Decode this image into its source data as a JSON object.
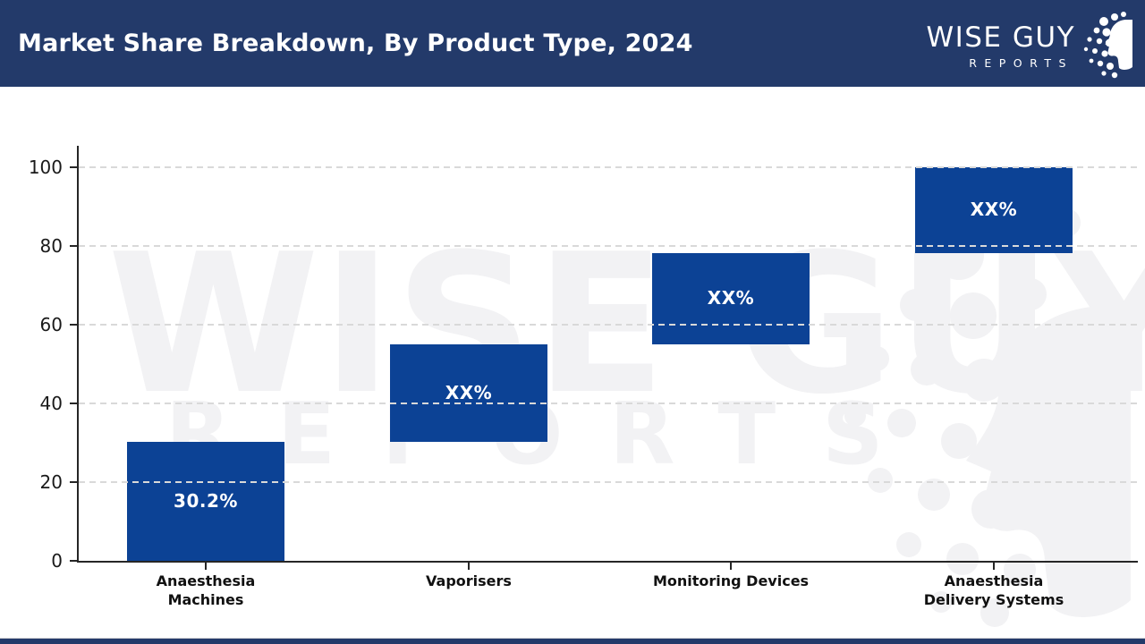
{
  "header": {
    "title": "Market Share Breakdown, By Product Type, 2024",
    "logo": {
      "line1": "WISE GUY",
      "line2": "REPORTS"
    }
  },
  "watermark": {
    "line1": "WISE GUY",
    "line2": "REPORTS"
  },
  "chart_data": {
    "type": "bar",
    "subtype": "waterfall",
    "title": "Market Share Breakdown, By Product Type, 2024",
    "categories": [
      "Anaesthesia Machines",
      "Vaporisers",
      "Monitoring Devices",
      "Anaesthesia Delivery Systems"
    ],
    "categories_display": [
      [
        "Anaesthesia",
        "Machines"
      ],
      [
        "Vaporisers"
      ],
      [
        "Monitoring Devices"
      ],
      [
        "Anaesthesia",
        "Delivery Systems"
      ]
    ],
    "segments": [
      {
        "start": 0,
        "end": 30.2,
        "label": "30.2%"
      },
      {
        "start": 30.2,
        "end": 55,
        "label": "XX%"
      },
      {
        "start": 55,
        "end": 78.2,
        "label": "XX%"
      },
      {
        "start": 78.2,
        "end": 100,
        "label": "XX%"
      }
    ],
    "xlabel": "",
    "ylabel": "",
    "ylim": [
      0,
      100
    ],
    "yticks": [
      0,
      20,
      40,
      60,
      80,
      100
    ],
    "grid": "horizontal dashed, drawn above bars",
    "legend": "none",
    "bar_color": "#0C4295",
    "bar_label_color": "#ffffff"
  },
  "colors": {
    "header_bg": "#233A6A",
    "footer_bg": "#233A6A",
    "bar": "#0C4295",
    "axis": "#262626",
    "grid": "#d9d9d9",
    "watermark": "#f2f2f4",
    "title_text": "#ffffff",
    "tick_text": "#1a1a1a"
  }
}
